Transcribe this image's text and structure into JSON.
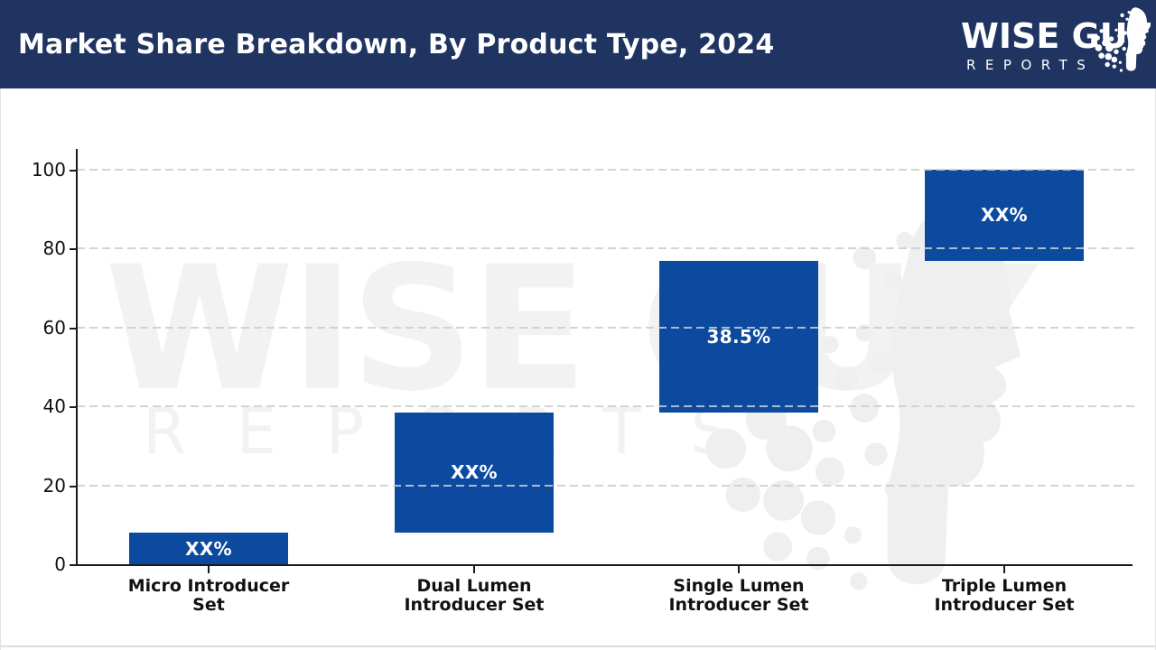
{
  "header": {
    "title": "Market Share Breakdown, By Product Type, 2024"
  },
  "logo": {
    "name": "WISE GUY",
    "tagline": "REPORTS"
  },
  "watermark": {
    "name": "WISE GUY",
    "tagline": "REPORTS"
  },
  "colors": {
    "header_bg": "#203462",
    "bar_blue": "#0b4a9f",
    "grid_gray": "#cdcdcd",
    "axis_black": "#1a1a1a",
    "watermark_gray": "#f1f1f1",
    "bar_label_white": "#ffffff"
  },
  "chart_data": {
    "type": "bar",
    "subtype": "stacked-waterfall",
    "title": "Market Share Breakdown, By Product Type, 2024",
    "xlabel": "",
    "ylabel": "",
    "ylim": [
      0,
      100
    ],
    "yticks": [
      0,
      20,
      40,
      60,
      80,
      100
    ],
    "grid": "horizontal-dashed, drawn over bars",
    "legend": "none",
    "categories": [
      [
        "Micro Introducer",
        "Set"
      ],
      [
        "Dual Lumen",
        "Introducer Set"
      ],
      [
        "Single Lumen",
        "Introducer Set"
      ],
      [
        "Triple Lumen",
        "Introducer Set"
      ]
    ],
    "bars": [
      {
        "start": 0,
        "end": 8,
        "value": 8,
        "label": "XX%"
      },
      {
        "start": 8,
        "end": 38.5,
        "value": 30.5,
        "label": "XX%"
      },
      {
        "start": 38.5,
        "end": 77,
        "value": 38.5,
        "label": "38.5%"
      },
      {
        "start": 77,
        "end": 100,
        "value": 23,
        "label": "XX%"
      }
    ]
  }
}
